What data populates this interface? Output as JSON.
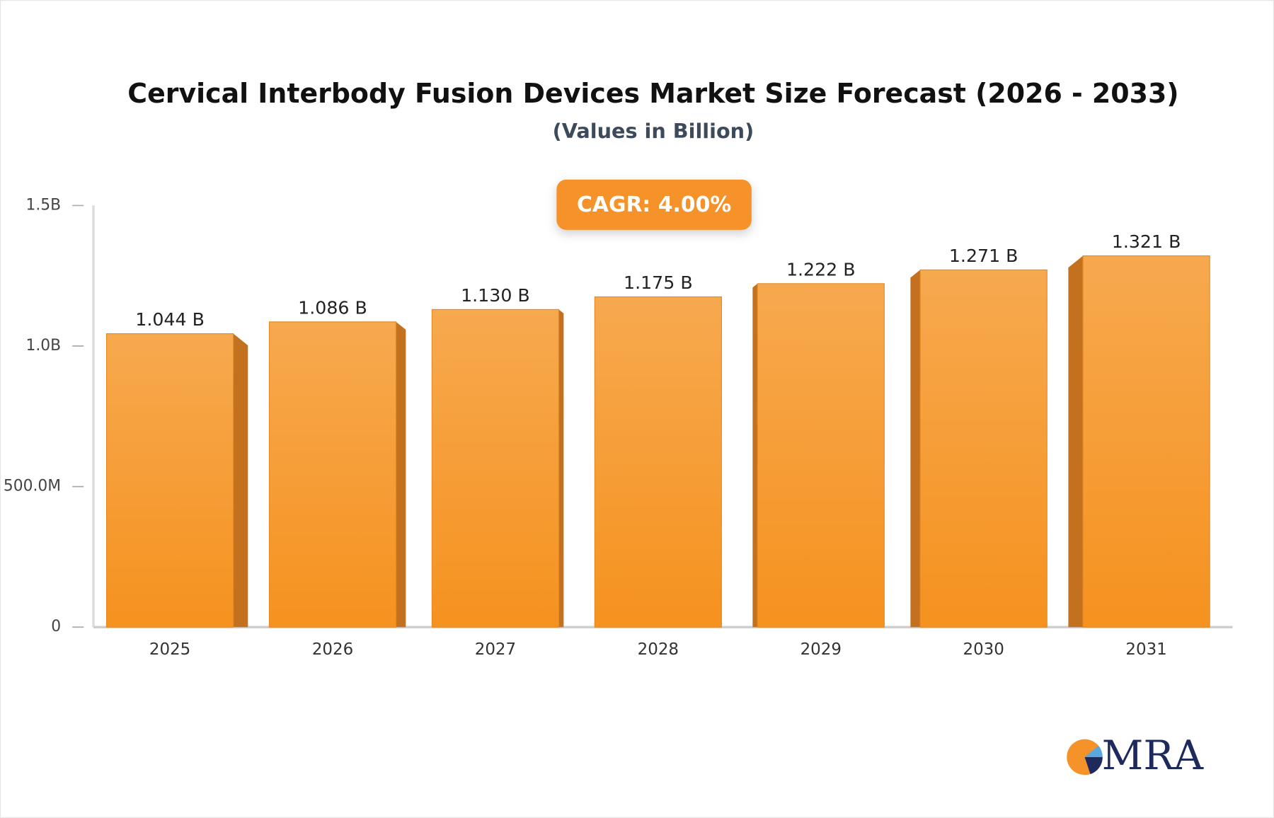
{
  "chart_data": {
    "type": "bar",
    "title": "Cervical Interbody Fusion Devices Market Size Forecast (2026 - 2033)",
    "subtitle": "(Values in Billion)",
    "annotation": "CAGR: 4.00%",
    "logo": "MRA",
    "categories": [
      "2025",
      "2026",
      "2027",
      "2028",
      "2029",
      "2030",
      "2031"
    ],
    "values": [
      1.044,
      1.086,
      1.13,
      1.175,
      1.222,
      1.271,
      1.321
    ],
    "value_labels": [
      "1.044 B",
      "1.086 B",
      "1.130 B",
      "1.175 B",
      "1.222 B",
      "1.271 B",
      "1.321 B"
    ],
    "color": "#f69a30",
    "ylim": [
      0,
      1.5
    ],
    "yticks": [
      0,
      {
        "value": 0.5,
        "label": "500.0M"
      },
      {
        "value": 1,
        "label": "1.0B"
      },
      {
        "value": 1.5,
        "label": "1.5B"
      }
    ],
    "grid": false
  }
}
